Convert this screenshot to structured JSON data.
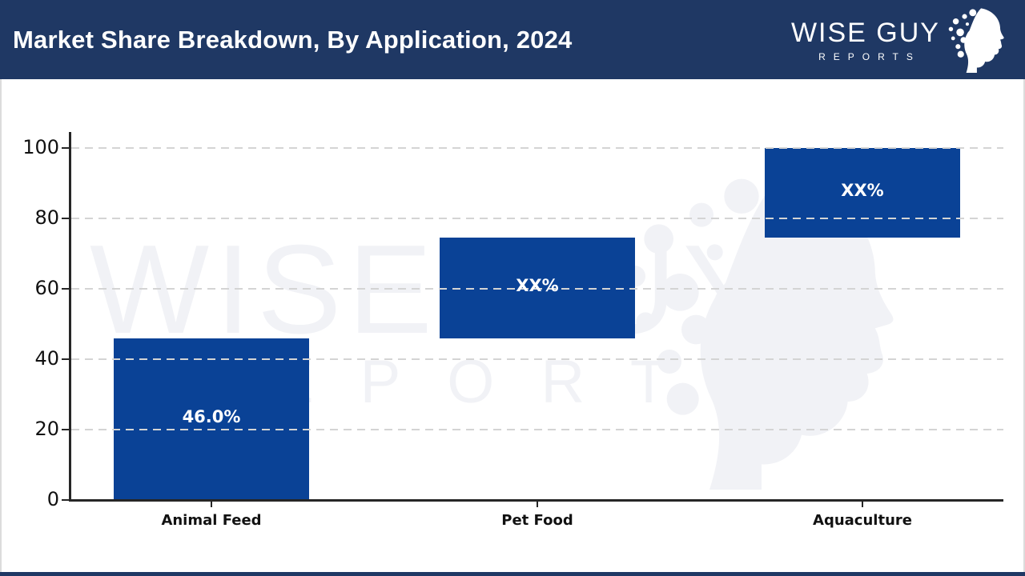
{
  "header": {
    "title": "Market Share Breakdown, By Application, 2024",
    "logo": {
      "line1": "WISE GUY",
      "line2": "REPORTS"
    }
  },
  "watermark": {
    "line1": "WISE GUY",
    "line2": "REPORTS"
  },
  "chart_data": {
    "type": "bar",
    "variant": "waterfall",
    "title": "Market Share Breakdown, By Application, 2024",
    "categories": [
      "Animal Feed",
      "Pet Food",
      "Aquaculture"
    ],
    "segments": [
      {
        "category": "Animal Feed",
        "start": 0,
        "end": 46.0,
        "label": "46.0%"
      },
      {
        "category": "Pet Food",
        "start": 46.0,
        "end": 74.5,
        "label": "XX%"
      },
      {
        "category": "Aquaculture",
        "start": 74.5,
        "end": 100,
        "label": "XX%"
      }
    ],
    "ylim": [
      0,
      100
    ],
    "yticks": [
      "0",
      "20",
      "40",
      "60",
      "80",
      "100"
    ],
    "xlabel": "",
    "ylabel": "",
    "grid": "horizontal-dashed",
    "legend": "none",
    "bar_color": "#0a4296",
    "bar_label_color": "#ffffff"
  },
  "colors": {
    "header_bg": "#1f3864",
    "footer_bg": "#1f3864",
    "bar": "#0a4296",
    "axis": "#262626",
    "gridline": "#d4d4d4",
    "watermark": "#f1f2f6",
    "title_text": "#ffffff"
  }
}
